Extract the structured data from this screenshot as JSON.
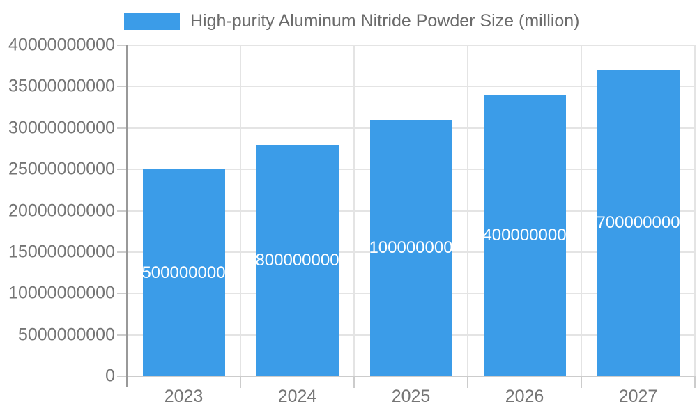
{
  "legend": {
    "label": "High-purity Aluminum Nitride Powder Size (million)"
  },
  "chart_data": {
    "type": "bar",
    "title": "",
    "series_name": "High-purity Aluminum Nitride Powder Size (million)",
    "categories": [
      "2023",
      "2024",
      "2025",
      "2026",
      "2027"
    ],
    "values": [
      25000000000,
      28000000000,
      31000000000,
      34000000000,
      37000000000
    ],
    "xlabel": "",
    "ylabel": "",
    "ylim": [
      0,
      40000000000
    ],
    "y_tick_interval": 5000000000,
    "y_ticks": [
      "40000000000",
      "35000000000",
      "30000000000",
      "25000000000",
      "20000000000",
      "15000000000",
      "10000000000",
      "5000000000",
      "0"
    ],
    "grid": true,
    "legend_position": "top",
    "bar_value_labels": "inside-center, white, clipped to bar width"
  },
  "colors": {
    "bar": "#3B9CE8",
    "grid": "#E4E4E4",
    "axis": "#999999",
    "axis_light": "#CCCCCC",
    "tick": "#CCCCCC",
    "text": "#757575",
    "legend_text": "#6B6B6B",
    "bar_label": "#FFFFFF",
    "background": "#FFFFFF"
  }
}
